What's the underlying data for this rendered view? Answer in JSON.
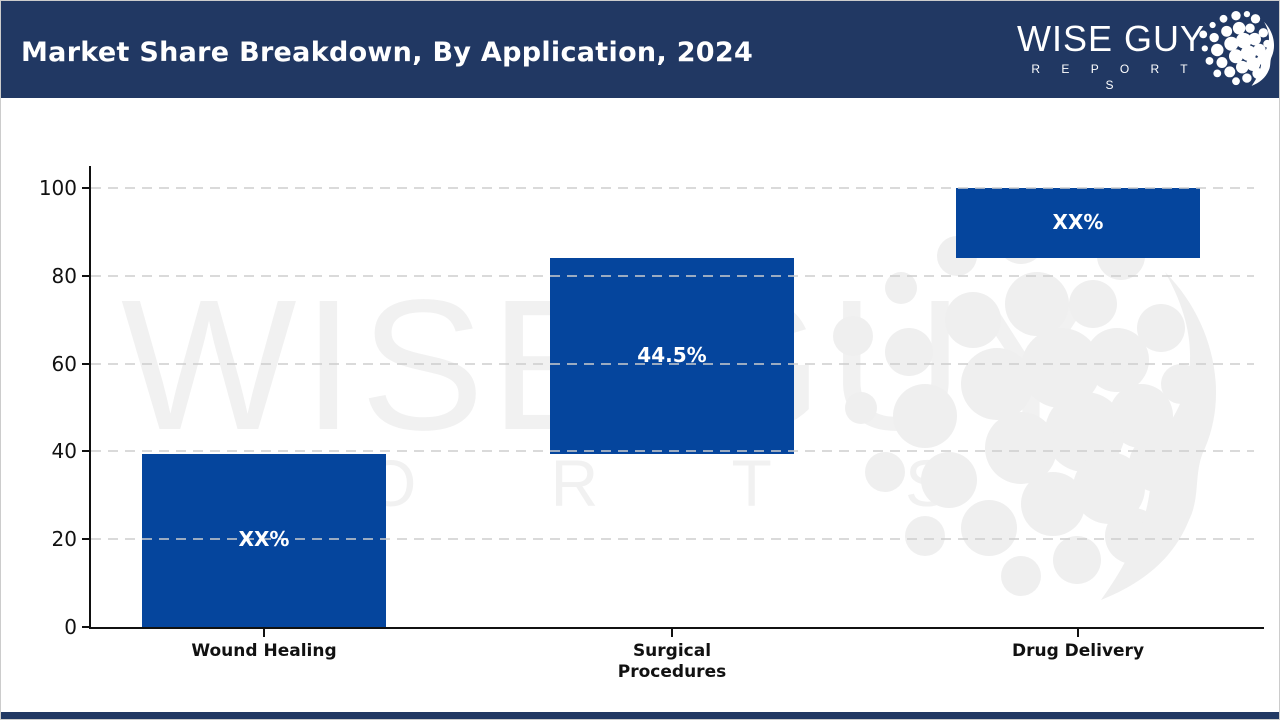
{
  "header": {
    "title": "Market Share Breakdown, By Application, 2024",
    "logo": {
      "line1": "WISE GUY",
      "line2": "R E P O R T S"
    }
  },
  "watermark": {
    "line1": "WISE GUY",
    "line2": "R O R T S"
  },
  "footer": {},
  "colors": {
    "header_bg": "#213863",
    "footer_bg": "#213863",
    "bar": "#05459d",
    "grid": "#cdcdcd",
    "watermark": "#f1f1f1"
  },
  "chart_data": {
    "type": "bar",
    "subtype": "waterfall",
    "title": "Market Share Breakdown, By Application, 2024",
    "categories": [
      "Wound Healing",
      "Surgical Procedures",
      "Drug Delivery"
    ],
    "bars": [
      {
        "category": "Wound Healing",
        "start": 0,
        "end": 39.5,
        "label": "XX%"
      },
      {
        "category": "Surgical Procedures",
        "start": 39.5,
        "end": 84,
        "label": "44.5%"
      },
      {
        "category": "Drug Delivery",
        "start": 84,
        "end": 100,
        "label": "XX%"
      }
    ],
    "yticks": [
      0,
      20,
      40,
      60,
      80,
      100
    ],
    "ylim": [
      0,
      105
    ],
    "xlabel": "",
    "ylabel": "",
    "grid": "horizontal-dashed",
    "legend": "none",
    "bar_color_hex": "#05459d",
    "value_labels_inside": true
  }
}
